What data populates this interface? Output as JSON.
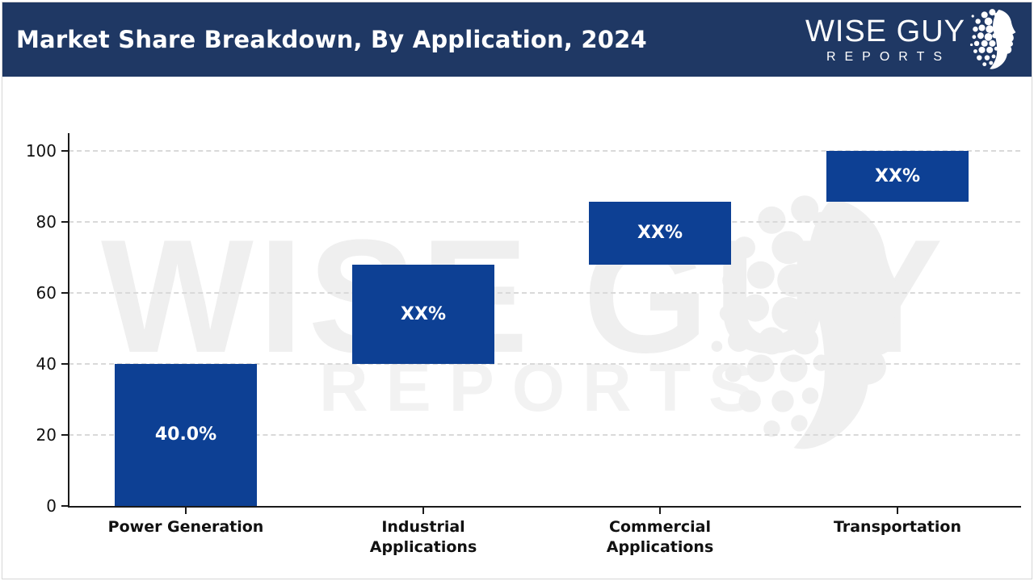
{
  "header": {
    "title": "Market Share Breakdown, By Application, 2024",
    "background": "#1f3864",
    "logo": {
      "line1": "WISE GUY",
      "line2": "REPORTS",
      "head_icon": "dotted-profile-head-icon"
    }
  },
  "watermark": {
    "line1": "WISE GUY",
    "line2": "REPORTS",
    "head_icon": "dotted-profile-head-icon",
    "color": "#efefef"
  },
  "chart_data": {
    "type": "bar",
    "subtype": "floating-waterfall",
    "title": "Market Share Breakdown, By Application, 2024",
    "categories": [
      "Power Generation",
      "Industrial Applications",
      "Commercial Applications",
      "Transportation"
    ],
    "category_lines": [
      [
        "Power Generation"
      ],
      [
        "Industrial",
        "Applications"
      ],
      [
        "Commercial",
        "Applications"
      ],
      [
        "Transportation"
      ]
    ],
    "series": [
      {
        "name": "Market Share (%)",
        "segments": [
          {
            "category": "Power Generation",
            "start": 0,
            "end": 40,
            "label": "40.0%"
          },
          {
            "category": "Industrial Applications",
            "start": 40,
            "end": 68,
            "label": "XX%"
          },
          {
            "category": "Commercial Applications",
            "start": 68,
            "end": 85.5,
            "label": "XX%"
          },
          {
            "category": "Transportation",
            "start": 85.5,
            "end": 100,
            "label": "XX%"
          }
        ]
      }
    ],
    "yticks": [
      0,
      20,
      40,
      60,
      80,
      100
    ],
    "ylim": [
      0,
      105
    ],
    "xlabel": "",
    "ylabel": "",
    "legend": "none",
    "grid": {
      "horizontal": true,
      "style": "dashed",
      "color": "#d9d9d9"
    },
    "bar_color": "#0d4094",
    "bar_label_color": "#ffffff",
    "axis_color": "#1a1a1a"
  }
}
